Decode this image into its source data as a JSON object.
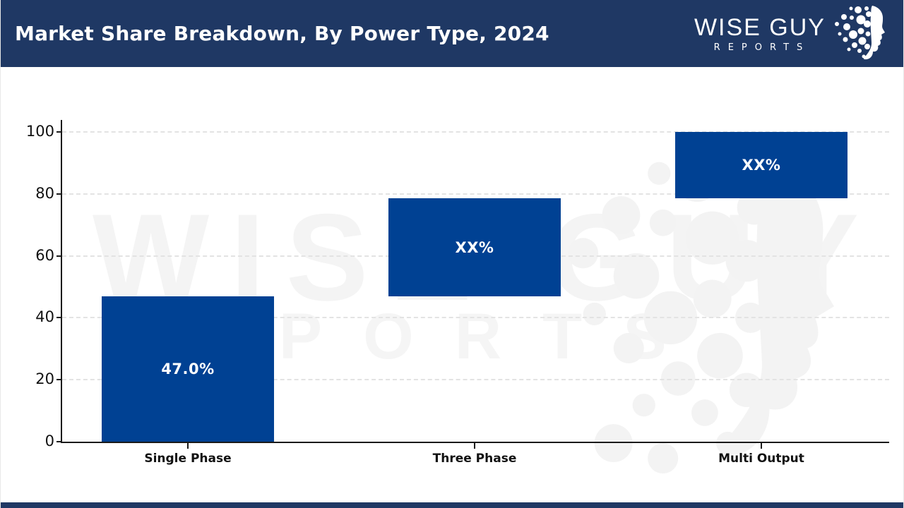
{
  "header": {
    "title": "Market Share Breakdown, By Power Type, 2024",
    "bg_color": "#1f3864",
    "logo": {
      "line1": "WISE GUY",
      "line2": "REPORTS"
    }
  },
  "watermark": {
    "line1": "WISE GUY",
    "line2": "REPORTS"
  },
  "chart_data": {
    "type": "bar",
    "subtype": "waterfall",
    "title": "Market Share Breakdown, By Power Type, 2024",
    "categories": [
      "Single Phase",
      "Three Phase",
      "Multi Output"
    ],
    "segments": [
      [
        0,
        47.0
      ],
      [
        47.0,
        78.5
      ],
      [
        78.5,
        100
      ]
    ],
    "values": [
      47.0,
      31.5,
      21.5
    ],
    "bar_labels": [
      "47.0%",
      "XX%",
      "XX%"
    ],
    "yticks": [
      0,
      20,
      40,
      60,
      80,
      100
    ],
    "ylim": [
      0,
      104
    ],
    "xlabel": "",
    "ylabel": "",
    "grid": "dashed-horizontal",
    "legend": "none",
    "bar_color": "#004193",
    "bar_label_color": "#ffffff",
    "axis_color": "#1a1a1a",
    "grid_color": "#e3e3e3"
  },
  "footer": {
    "bg_color": "#1f3864"
  }
}
